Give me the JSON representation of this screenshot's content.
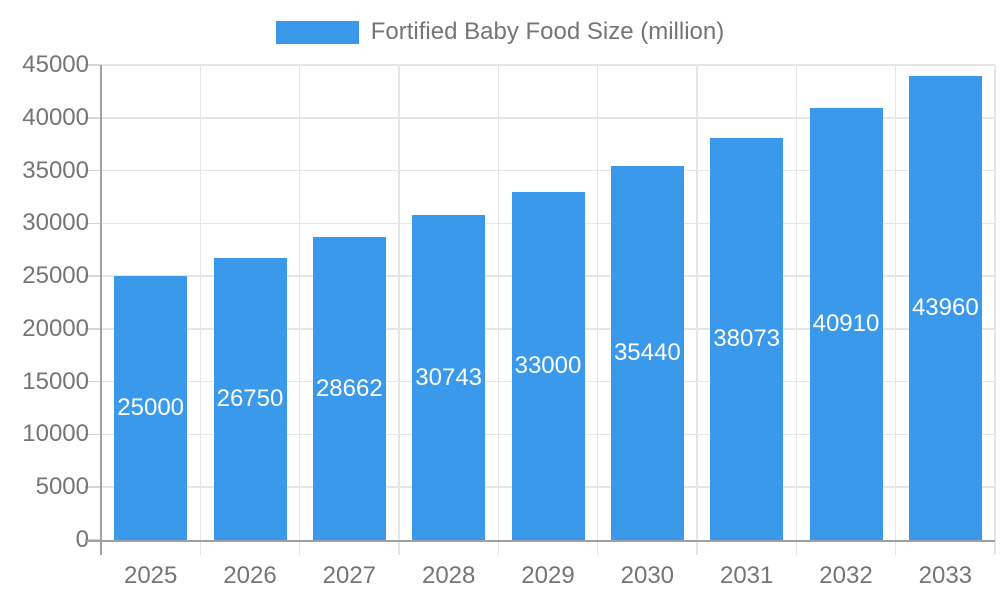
{
  "chart_data": {
    "type": "bar",
    "categories": [
      "2025",
      "2026",
      "2027",
      "2028",
      "2029",
      "2030",
      "2031",
      "2032",
      "2033"
    ],
    "series": [
      {
        "name": "Fortified Baby Food Size (million)",
        "color": "#3B99EC",
        "values": [
          25000,
          26750,
          28662,
          30743,
          33000,
          35440,
          38073,
          40910,
          43960
        ]
      }
    ],
    "value_labels": [
      "25000",
      "26750",
      "28662",
      "30743",
      "33000",
      "35440",
      "38073",
      "40910",
      "43960"
    ],
    "value_label_color": "#FFFFFF",
    "xlabel": "",
    "ylabel": "",
    "ylim": [
      0,
      45000
    ],
    "ytick_step": 5000,
    "yticks": [
      0,
      5000,
      10000,
      15000,
      20000,
      25000,
      30000,
      35000,
      40000,
      45000
    ],
    "grid": true,
    "legend_position": "top",
    "colors": {
      "axis_text": "#757575",
      "grid_line": "#E6E6E6",
      "axis_line": "#A0A0A0",
      "tick_mark": "#D6D6D6",
      "background": "#FFFFFF"
    }
  }
}
